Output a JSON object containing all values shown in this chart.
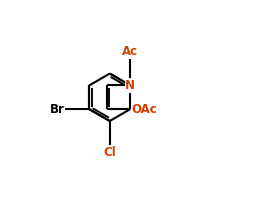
{
  "background": "#ffffff",
  "bond_color": "#000000",
  "bond_lw": 1.5,
  "figsize": [
    2.69,
    2.09
  ],
  "dpi": 100,
  "fs": 8.5,
  "color_N": "#cc4400",
  "color_Ac": "#cc4400",
  "color_OAc": "#cc4400",
  "color_Cl": "#cc4400",
  "color_Br": "#000000",
  "color_bond": "#000000",
  "xlim": [
    0.0,
    1.0
  ],
  "ylim": [
    0.0,
    1.0
  ]
}
